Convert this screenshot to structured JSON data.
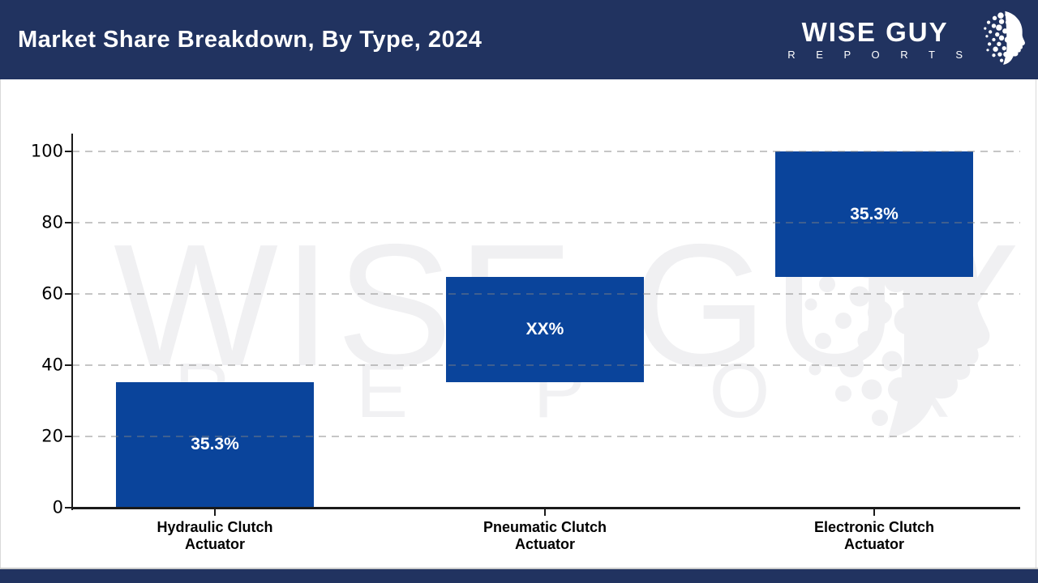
{
  "header": {
    "title": "Market Share Breakdown, By Type, 2024",
    "logo": {
      "line1": "WISE GUY",
      "line2": "R E P O R T S"
    }
  },
  "watermark": {
    "line1": "WISE GUY",
    "line2": "R E P O R T S"
  },
  "colors": {
    "header_navy": "#213360",
    "footer_navy": "#213360",
    "bar_blue": "#0A449B",
    "axis_black": "#1a1a1a",
    "grid_gray": "rgba(128,128,128,0.45)",
    "watermark_gray": "#f0f0f2"
  },
  "chart_data": {
    "type": "bar",
    "subtype": "floating-waterfall",
    "title": "Market Share Breakdown, By Type, 2024",
    "categories": [
      "Hydraulic Clutch Actuator",
      "Pneumatic Clutch Actuator",
      "Electronic Clutch Actuator"
    ],
    "category_lines": [
      [
        "Hydraulic Clutch",
        "Actuator"
      ],
      [
        "Pneumatic Clutch",
        "Actuator"
      ],
      [
        "Electronic Clutch",
        "Actuator"
      ]
    ],
    "bars": [
      {
        "category": "Hydraulic Clutch Actuator",
        "from": 0,
        "to": 35.3,
        "value_label": "35.3%"
      },
      {
        "category": "Pneumatic Clutch Actuator",
        "from": 35.3,
        "to": 64.7,
        "value_label": "XX%"
      },
      {
        "category": "Electronic Clutch Actuator",
        "from": 64.7,
        "to": 100,
        "value_label": "35.3%"
      }
    ],
    "yticks": [
      0,
      20,
      40,
      60,
      80,
      100
    ],
    "ylim": [
      0,
      105
    ],
    "xlabel": "",
    "ylabel": "",
    "grid": {
      "axis": "y",
      "style": "dashed",
      "over_bars": true
    },
    "legend": "none",
    "bar_color": "#0A449B"
  }
}
